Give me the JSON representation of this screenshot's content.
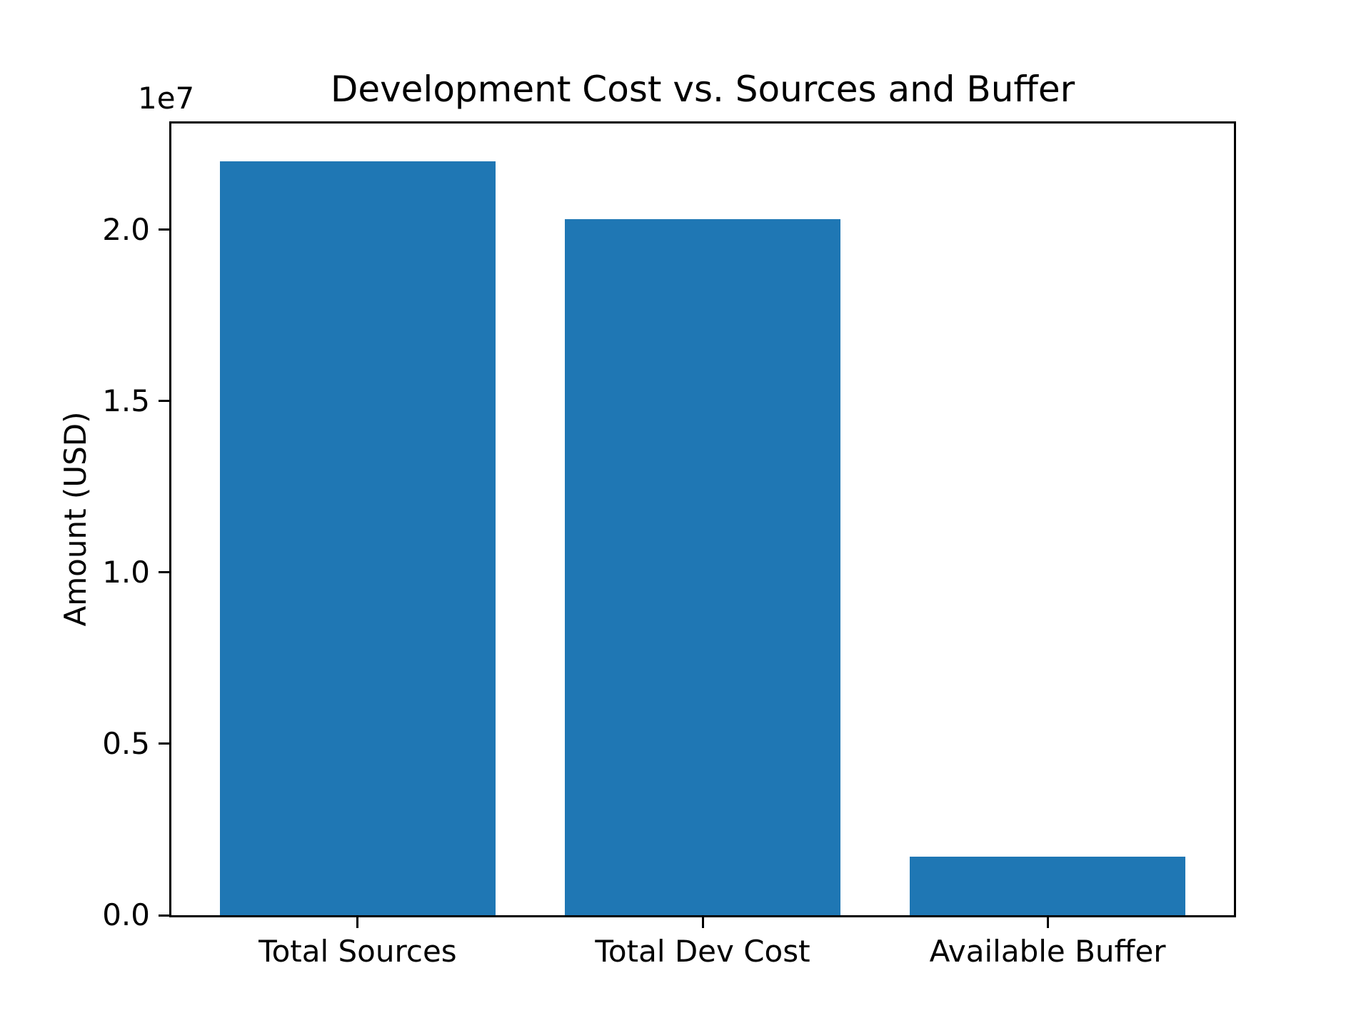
{
  "chart_data": {
    "type": "bar",
    "title": "Development Cost vs. Sources and Buffer",
    "xlabel": "",
    "ylabel": "Amount (USD)",
    "offset_text": "1e7",
    "categories": [
      "Total Sources",
      "Total Dev Cost",
      "Available Buffer"
    ],
    "values": [
      22000000,
      20300000,
      1700000
    ],
    "ylim": [
      0,
      23100000
    ],
    "yticks": {
      "values": [
        0,
        5000000,
        10000000,
        15000000,
        20000000
      ],
      "labels": [
        "0.0",
        "0.5",
        "1.0",
        "1.5",
        "2.0"
      ]
    },
    "bar_color": "#1f77b4",
    "axis_color": "#000000",
    "grid": false,
    "legend": null
  }
}
